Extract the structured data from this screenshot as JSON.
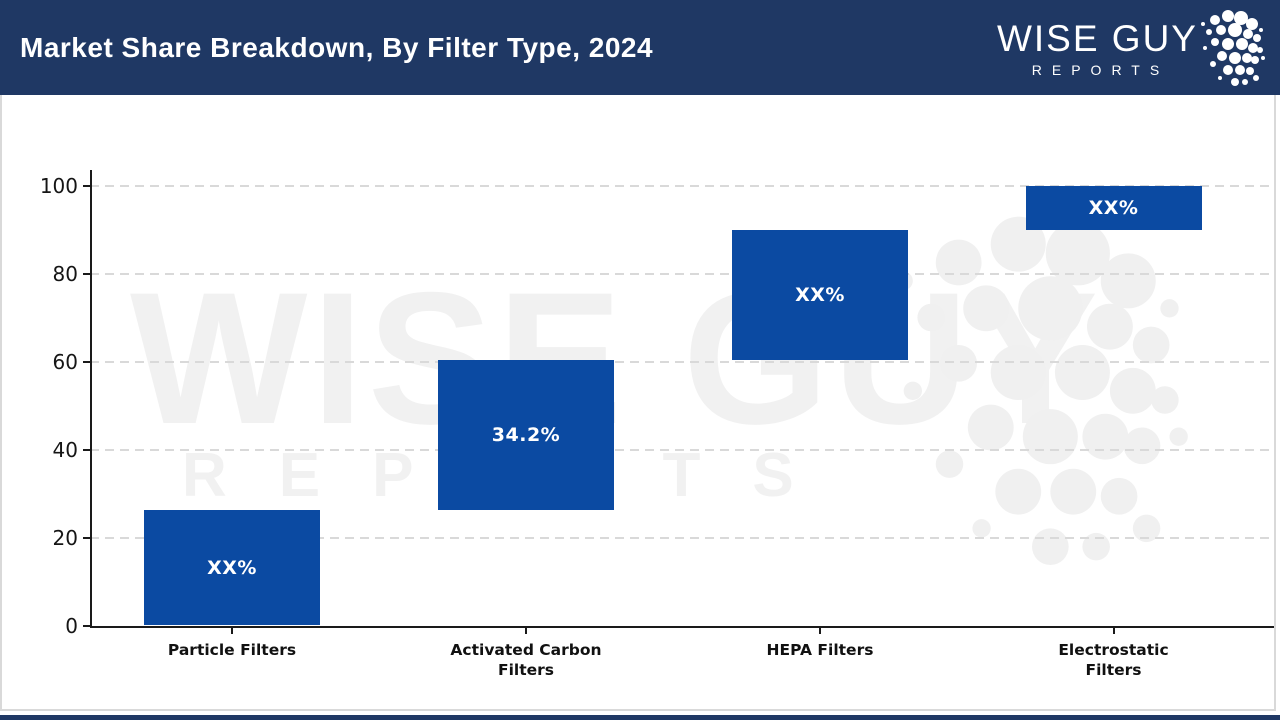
{
  "header": {
    "title": "Market Share Breakdown, By Filter Type, 2024",
    "bg_color": "#1f3864",
    "logo": {
      "line1": "WISE GUY",
      "line2": "REPORTS"
    }
  },
  "watermark": {
    "line1": "WISE GUY",
    "line2": "REPORTS"
  },
  "chart_data": {
    "type": "bar",
    "subtype": "waterfall-floating-segments",
    "title": "Market Share Breakdown, By Filter Type, 2024",
    "xlabel": "",
    "ylabel": "",
    "ylim": [
      0,
      104
    ],
    "y_ticks": [
      0,
      20,
      40,
      60,
      80,
      100
    ],
    "grid": {
      "axis": "y",
      "style": "dashed",
      "color": "#d9d9d9"
    },
    "bar_color": "#0b4aa2",
    "label_color": "#ffffff",
    "categories": [
      "Particle Filters",
      "Activated Carbon Filters",
      "HEPA Filters",
      "Electrostatic Filters"
    ],
    "categories_lines": [
      [
        "Particle Filters"
      ],
      [
        "Activated Carbon",
        "Filters"
      ],
      [
        "HEPA Filters"
      ],
      [
        "Electrostatic",
        "Filters"
      ]
    ],
    "segments": [
      {
        "category": "Particle Filters",
        "start": 0,
        "end": 26.2,
        "value": 26.2,
        "label": "XX%"
      },
      {
        "category": "Activated Carbon Filters",
        "start": 26.2,
        "end": 60.4,
        "value": 34.2,
        "label": "34.2%"
      },
      {
        "category": "HEPA Filters",
        "start": 60.4,
        "end": 90.0,
        "value": 29.6,
        "label": "XX%"
      },
      {
        "category": "Electrostatic Filters",
        "start": 90.0,
        "end": 100.0,
        "value": 10.0,
        "label": "XX%"
      }
    ]
  }
}
